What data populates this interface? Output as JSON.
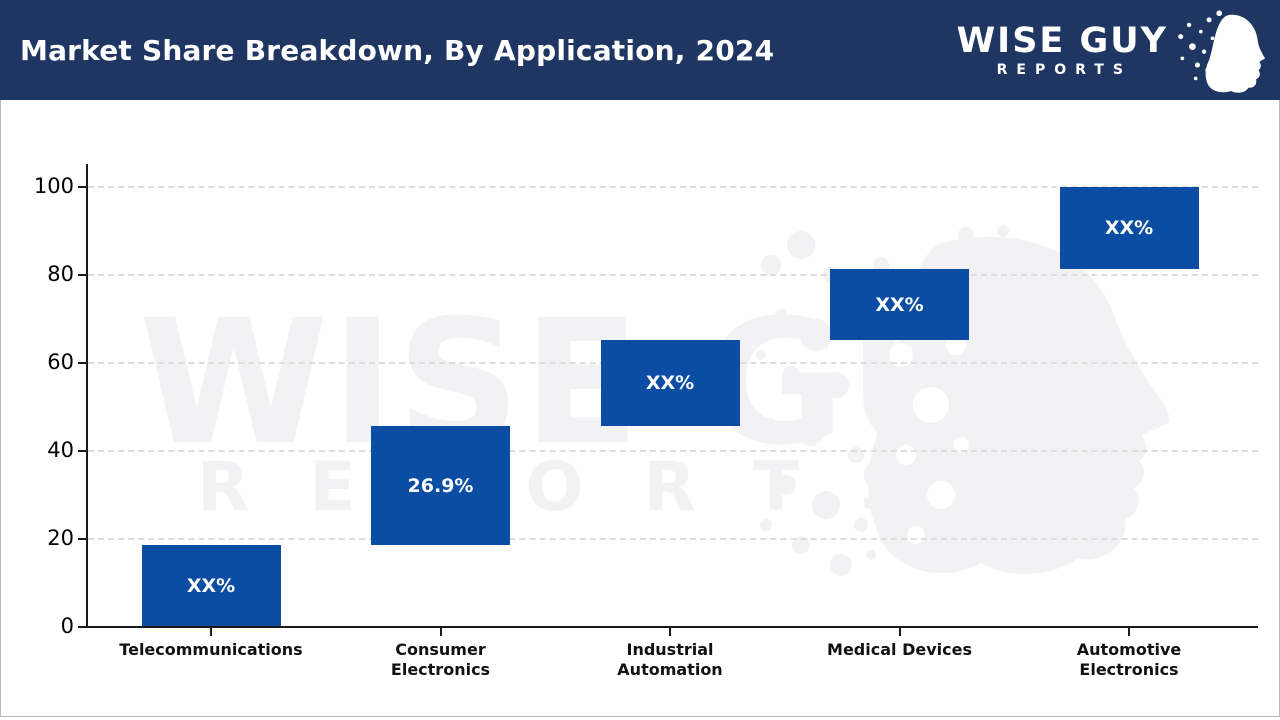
{
  "header": {
    "title": "Market Share Breakdown, By Application, 2024",
    "bg_color": "#1f3663",
    "logo": {
      "line1": "WISE GUY",
      "line2": "REPORTS"
    }
  },
  "watermark": {
    "line1": "WISE GUY",
    "line2": "REPORTS"
  },
  "chart_data": {
    "type": "bar",
    "subtype": "waterfall",
    "title": "Market Share Breakdown, By Application, 2024",
    "categories": [
      "Telecommunications",
      "Consumer\nElectronics",
      "Industrial\nAutomation",
      "Medical Devices",
      "Automotive\nElectronics"
    ],
    "segments": [
      {
        "start": 0,
        "end": 18.7,
        "label": "XX%"
      },
      {
        "start": 18.7,
        "end": 45.6,
        "label": "26.9%"
      },
      {
        "start": 45.6,
        "end": 65.2,
        "label": "XX%"
      },
      {
        "start": 65.2,
        "end": 81.3,
        "label": "XX%"
      },
      {
        "start": 81.3,
        "end": 100,
        "label": "XX%"
      }
    ],
    "yticks": [
      0,
      20,
      40,
      60,
      80,
      100
    ],
    "ylim": [
      0,
      105
    ],
    "xlabel": "",
    "ylabel": "",
    "grid": "horizontal dashed",
    "legend": "none",
    "bar_color": "#0b4da3",
    "bar_label_color": "#ffffff"
  }
}
